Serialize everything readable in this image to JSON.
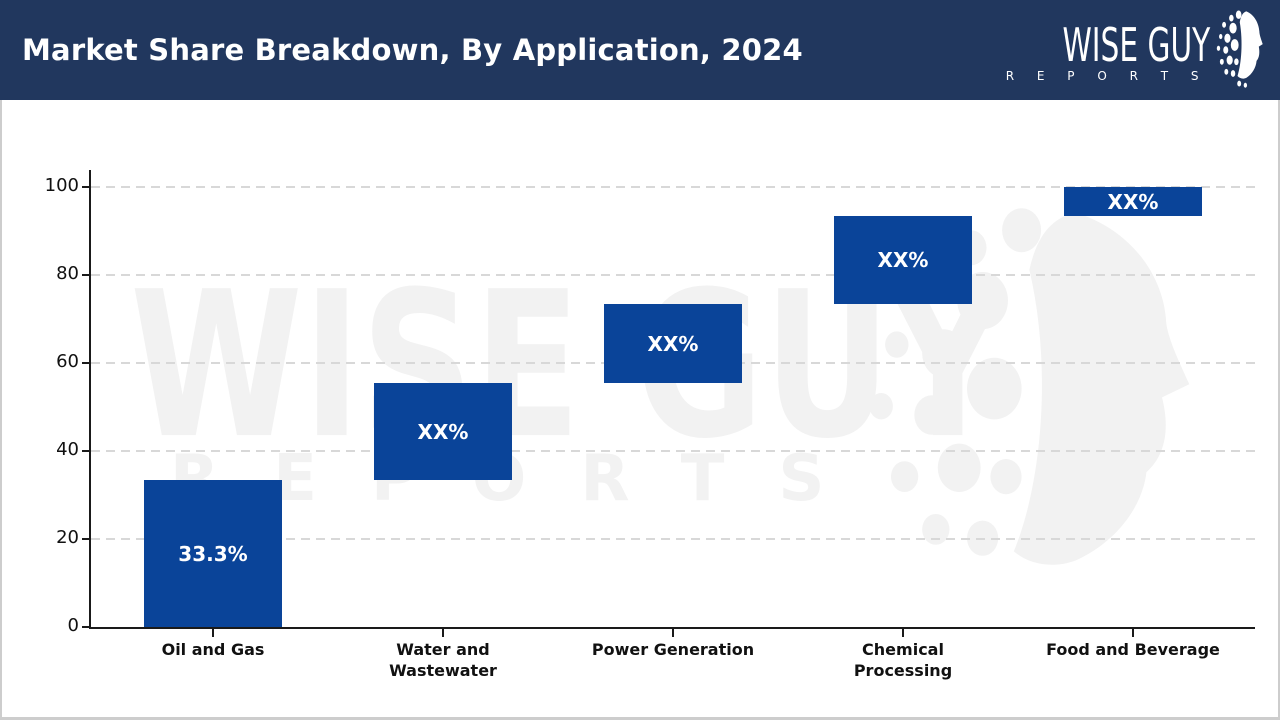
{
  "header": {
    "title": "Market Share Breakdown, By Application, 2024",
    "logo": {
      "wordmark": "WISE GUY",
      "reports": "R E P O R T S"
    }
  },
  "watermark": {
    "wordmark": "WISE GUY",
    "reports": "REPORTS"
  },
  "chart_data": {
    "type": "bar",
    "subtype": "waterfall",
    "title": "Market Share Breakdown, By Application, 2024",
    "categories": [
      "Oil and Gas",
      "Water and\nWastewater",
      "Power Generation",
      "Chemical\nProcessing",
      "Food and Beverage"
    ],
    "bars": [
      {
        "category": "Oil and Gas",
        "start": 0,
        "end": 33.3,
        "label": "33.3%"
      },
      {
        "category": "Water and Wastewater",
        "start": 33.3,
        "end": 55.5,
        "label": "XX%"
      },
      {
        "category": "Power Generation",
        "start": 55.5,
        "end": 73.3,
        "label": "XX%"
      },
      {
        "category": "Chemical Processing",
        "start": 73.3,
        "end": 93.3,
        "label": "XX%"
      },
      {
        "category": "Food and Beverage",
        "start": 93.3,
        "end": 100,
        "label": "XX%"
      }
    ],
    "xlabel": "",
    "ylabel": "",
    "ylim": [
      0,
      100
    ],
    "yticks": [
      0,
      20,
      40,
      60,
      80,
      100
    ],
    "grid": "horizontal-dashed",
    "legend": "none"
  },
  "colors": {
    "header_bg": "#21375E",
    "bar": "#0A4499",
    "bar_label": "#ffffff",
    "grid": "#d8d8d8",
    "axis": "#1a1a1a",
    "watermark": "#f2f2f2"
  }
}
